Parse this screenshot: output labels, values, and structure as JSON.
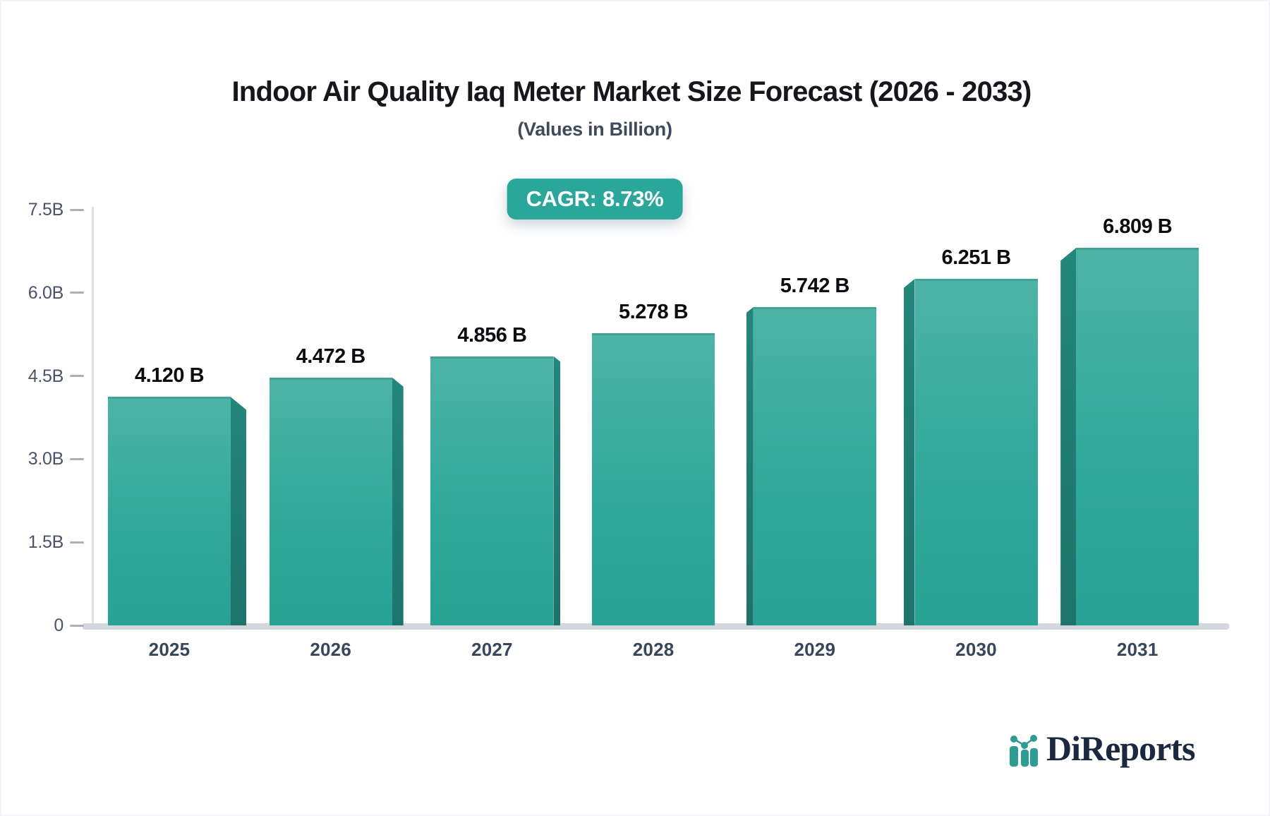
{
  "chart_data": {
    "type": "bar",
    "title": "Indoor Air Quality Iaq Meter Market Size Forecast (2026 - 2033)",
    "subtitle": "(Values in Billion)",
    "annotation": "CAGR: 8.73%",
    "categories": [
      "2025",
      "2026",
      "2027",
      "2028",
      "2029",
      "2030",
      "2031"
    ],
    "values": [
      4.12,
      4.472,
      4.856,
      5.278,
      5.742,
      6.251,
      6.809
    ],
    "value_labels": [
      "4.120 B",
      "4.472 B",
      "4.856 B",
      "5.278 B",
      "5.742 B",
      "6.251 B",
      "6.809 B"
    ],
    "xlabel": "",
    "ylabel": "",
    "ylim": [
      0,
      7.5
    ],
    "yticks": [
      {
        "v": 7.5,
        "label": "7.5B"
      },
      {
        "v": 6.0,
        "label": "6.0B"
      },
      {
        "v": 4.5,
        "label": "4.5B"
      },
      {
        "v": 3.0,
        "label": "3.0B"
      },
      {
        "v": 1.5,
        "label": "1.5B"
      },
      {
        "v": 0,
        "label": "0"
      }
    ],
    "grid": false,
    "legend": false
  },
  "colors": {
    "bar_top": "#4db4a7",
    "bar_bottom": "#28a294",
    "bar_side_dark": "#1c746b",
    "badge_bg": "#2aa79b",
    "badge_text": "#ffffff",
    "axis_line": "#dfe2e8",
    "baseline": "#d4d8de",
    "tick_dash": "#a9b0ba",
    "tick_label": "#49536a",
    "x_label": "#39455c",
    "value_label": "#0b0d11",
    "title": "#15171c",
    "subtitle": "#3f4a5c",
    "logo_accent": "#2d9c92",
    "logo_text": "#1b2940"
  },
  "logo": {
    "text": "DiReports",
    "icon": "mini-bar-line-chart-icon"
  }
}
